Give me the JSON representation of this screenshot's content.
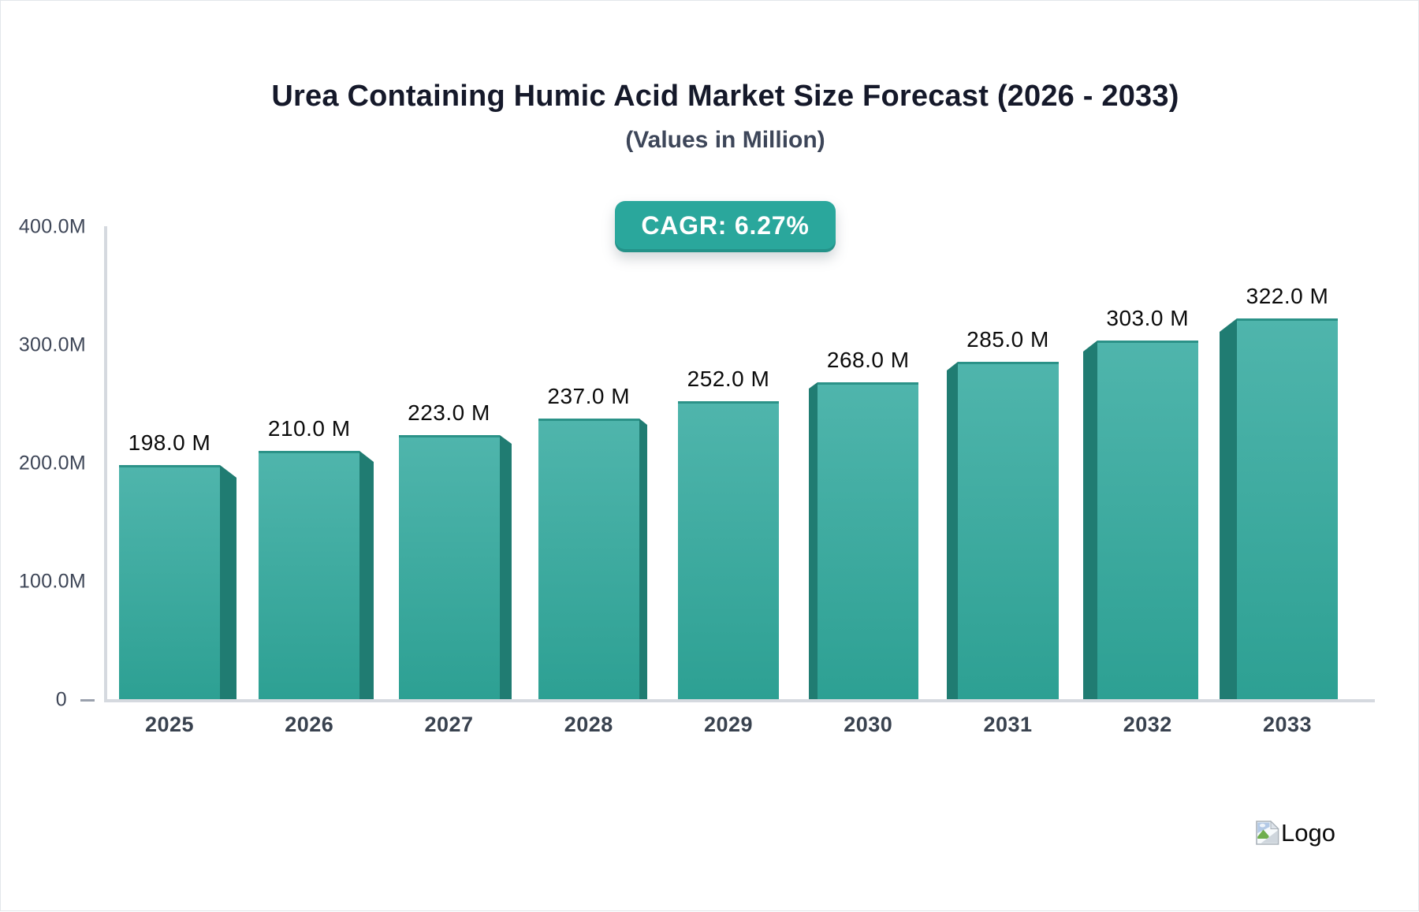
{
  "page": {
    "header": {
      "title": "Urea Containing Humic Acid Market Size Forecast (2026 - 2033)",
      "subtitle": "(Values in Million)",
      "cagr_badge": "CAGR: 6.27%"
    },
    "footer": {
      "logo_alt": "Logo"
    }
  },
  "chart_data": {
    "type": "bar",
    "title": "Urea Containing Humic Acid Market Size Forecast (2026 - 2033)",
    "subtitle": "(Values in Million)",
    "annotation": "CAGR: 6.27%",
    "categories": [
      "2025",
      "2026",
      "2027",
      "2028",
      "2029",
      "2030",
      "2031",
      "2032",
      "2033"
    ],
    "values": [
      198,
      210,
      223,
      237,
      252,
      268,
      285,
      303,
      322
    ],
    "value_labels": [
      "198.0 M",
      "210.0 M",
      "223.0 M",
      "237.0 M",
      "252.0 M",
      "268.0 M",
      "285.0 M",
      "303.0 M",
      "322.0 M"
    ],
    "y_ticks": [
      {
        "value": 0,
        "label": "0"
      },
      {
        "value": 100,
        "label": "100.0M"
      },
      {
        "value": 200,
        "label": "200.0M"
      },
      {
        "value": 300,
        "label": "300.0M"
      },
      {
        "value": 400,
        "label": "400.0M"
      }
    ],
    "ylim": [
      0,
      400
    ],
    "xlabel": "",
    "ylabel": "",
    "grid": false,
    "legend": false,
    "colors": {
      "bar_face_top": "#4fb5ac",
      "bar_face_bottom": "#2da093",
      "bar_top_edge": "#2b9288",
      "bar_side": "#207c72",
      "axis": "#d5d9df",
      "zero_tick": "#9aa1ad",
      "badge_bg": "#2aa79c",
      "badge_text": "#ffffff",
      "title_text": "#15192a",
      "subtitle_text": "#3d4659",
      "axis_label": "#3e4657",
      "year_label": "#39424f",
      "value_label": "#0b0b0b"
    }
  }
}
